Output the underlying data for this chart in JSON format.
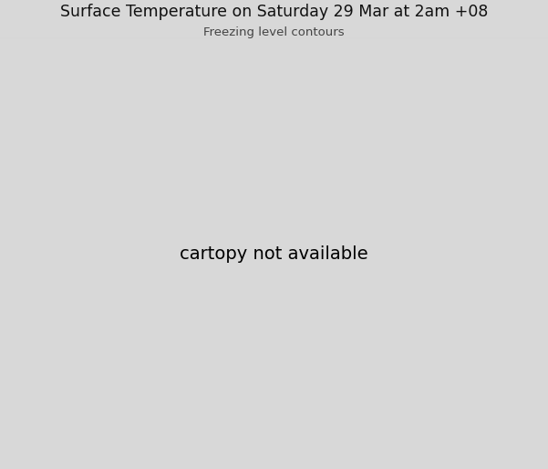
{
  "title": "Surface Temperature on Saturday 29 Mar at 2am +08",
  "subtitle": "Freezing level contours",
  "title_fontsize": 12.5,
  "subtitle_fontsize": 9.5,
  "title_color": "#111111",
  "subtitle_color": "#444444",
  "sea_color": "#c8cfe8",
  "fig_bg": "#d8d8d8",
  "header_bg": "#f0f0f0",
  "figsize": [
    6.01,
    5.14
  ],
  "dpi": 100,
  "map_extent": [
    94,
    132,
    -8,
    26
  ],
  "contour_color": "#dd0000",
  "contour_lw": 1.1,
  "label_color": "#dd0000",
  "label_fontsize": 6.5,
  "label_bg": "white",
  "border_color": "#111111",
  "border_lw": 0.7,
  "land_base": "#cc6600",
  "land_warm": "#dd8800",
  "land_yellow": "#e8b830",
  "land_hot": "#bb3300",
  "land_very_hot": "#992200",
  "land_dark_red": "#881100"
}
